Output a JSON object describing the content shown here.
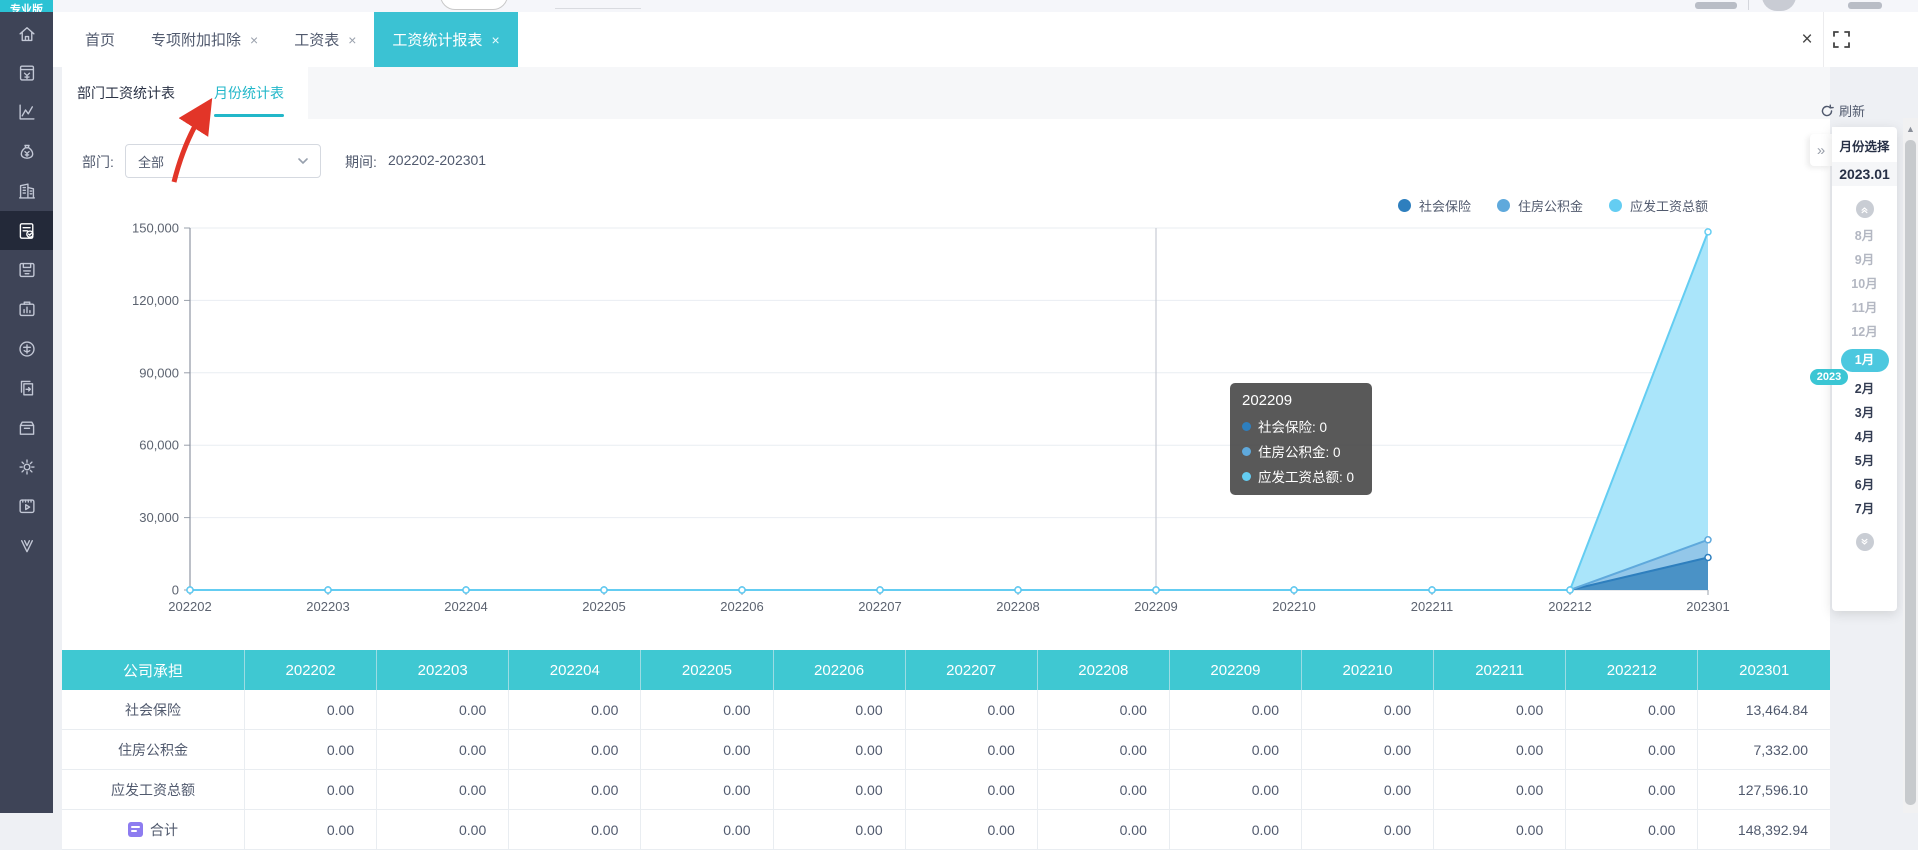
{
  "edition_badge": "专业版",
  "colors": {
    "primary": "#3fc8d2"
  },
  "top_tabs": [
    {
      "id": "home",
      "label": "首页",
      "closable": false,
      "active": false
    },
    {
      "id": "special-deduction",
      "label": "专项附加扣除",
      "closable": true,
      "active": false
    },
    {
      "id": "salary-sheet",
      "label": "工资表",
      "closable": true,
      "active": false
    },
    {
      "id": "salary-report",
      "label": "工资统计报表",
      "closable": true,
      "active": true
    }
  ],
  "sub_tabs": [
    {
      "id": "department",
      "label": "部门工资统计表",
      "active": false
    },
    {
      "id": "monthly",
      "label": "月份统计表",
      "active": true
    }
  ],
  "filters": {
    "department_label": "部门:",
    "department_value": "全部",
    "period_label": "期间:",
    "period_value": "202202-202301"
  },
  "toolbar": {
    "refresh_label": "刷新"
  },
  "chart": {
    "axis_pointer": "202209",
    "tooltip": {
      "title": "202209",
      "rows": [
        {
          "label": "社会保险",
          "value": "0"
        },
        {
          "label": "住房公积金",
          "value": "0"
        },
        {
          "label": "应发工资总额",
          "value": "0"
        }
      ]
    }
  },
  "chart_data": {
    "type": "area",
    "stacked": true,
    "x": [
      "202202",
      "202203",
      "202204",
      "202205",
      "202206",
      "202207",
      "202208",
      "202209",
      "202210",
      "202211",
      "202212",
      "202301"
    ],
    "series": [
      {
        "name": "社会保险",
        "color": "#2e7fbe",
        "fill": "#4a92c6",
        "values": [
          0,
          0,
          0,
          0,
          0,
          0,
          0,
          0,
          0,
          0,
          0,
          13464.84
        ]
      },
      {
        "name": "住房公积金",
        "color": "#5fa9dc",
        "fill": "#93c7e9",
        "values": [
          0,
          0,
          0,
          0,
          0,
          0,
          0,
          0,
          0,
          0,
          0,
          7332.0
        ]
      },
      {
        "name": "应发工资总额",
        "color": "#64cdf2",
        "fill": "#aae5fa",
        "values": [
          0,
          0,
          0,
          0,
          0,
          0,
          0,
          0,
          0,
          0,
          0,
          127596.1
        ]
      }
    ],
    "ylim": [
      0,
      150000
    ],
    "yticks": [
      0,
      30000,
      60000,
      90000,
      120000,
      150000
    ],
    "grid": true,
    "legend_position": "top-right"
  },
  "month_panel": {
    "collapse_icon": "»",
    "title": "月份选择",
    "current": "2023.01",
    "year_badge": "2023",
    "months": [
      {
        "label": "8月",
        "state": "prev"
      },
      {
        "label": "9月",
        "state": "prev"
      },
      {
        "label": "10月",
        "state": "prev"
      },
      {
        "label": "11月",
        "state": "prev"
      },
      {
        "label": "12月",
        "state": "prev"
      },
      {
        "label": "1月",
        "state": "active"
      },
      {
        "label": "2月",
        "state": "next"
      },
      {
        "label": "3月",
        "state": "next"
      },
      {
        "label": "4月",
        "state": "next"
      },
      {
        "label": "5月",
        "state": "next"
      },
      {
        "label": "6月",
        "state": "next"
      },
      {
        "label": "7月",
        "state": "next"
      }
    ]
  },
  "table": {
    "columns": [
      "公司承担",
      "202202",
      "202203",
      "202204",
      "202205",
      "202206",
      "202207",
      "202208",
      "202209",
      "202210",
      "202211",
      "202212",
      "202301"
    ],
    "rows": [
      {
        "label": "社会保险",
        "values": [
          "0.00",
          "0.00",
          "0.00",
          "0.00",
          "0.00",
          "0.00",
          "0.00",
          "0.00",
          "0.00",
          "0.00",
          "0.00",
          "13,464.84"
        ]
      },
      {
        "label": "住房公积金",
        "values": [
          "0.00",
          "0.00",
          "0.00",
          "0.00",
          "0.00",
          "0.00",
          "0.00",
          "0.00",
          "0.00",
          "0.00",
          "0.00",
          "7,332.00"
        ]
      },
      {
        "label": "应发工资总额",
        "values": [
          "0.00",
          "0.00",
          "0.00",
          "0.00",
          "0.00",
          "0.00",
          "0.00",
          "0.00",
          "0.00",
          "0.00",
          "0.00",
          "127,596.10"
        ]
      }
    ],
    "total_row": {
      "label": "合计",
      "values": [
        "0.00",
        "0.00",
        "0.00",
        "0.00",
        "0.00",
        "0.00",
        "0.00",
        "0.00",
        "0.00",
        "0.00",
        "0.00",
        "148,392.94"
      ]
    }
  },
  "sidebar": {
    "items": [
      {
        "id": "home"
      },
      {
        "id": "billing"
      },
      {
        "id": "analysis"
      },
      {
        "id": "funds"
      },
      {
        "id": "company"
      },
      {
        "id": "statements",
        "active": true
      },
      {
        "id": "cashier"
      },
      {
        "id": "assets"
      },
      {
        "id": "tax"
      },
      {
        "id": "voucher-export"
      },
      {
        "id": "archive"
      },
      {
        "id": "settings"
      },
      {
        "id": "tutorial"
      },
      {
        "id": "v-logo"
      }
    ]
  }
}
